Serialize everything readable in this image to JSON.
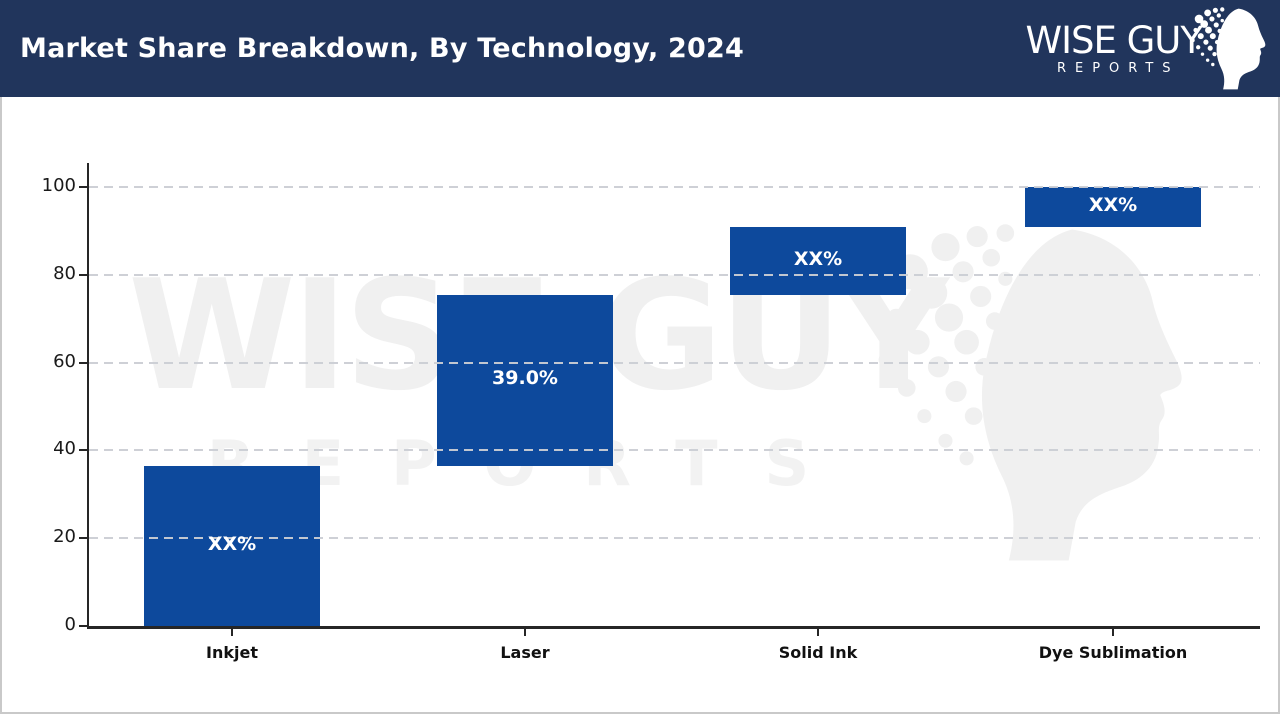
{
  "header": {
    "title": "Market Share Breakdown, By Technology, 2024",
    "bg_color": "#21355c",
    "logo": {
      "name": "WISE GUY",
      "sub": "REPORTS"
    }
  },
  "watermark": {
    "text": "WISE GUY",
    "sub": "REPORTS"
  },
  "chart_data": {
    "type": "bar",
    "subtype": "waterfall",
    "title": "Market Share Breakdown, By Technology, 2024",
    "categories": [
      "Inkjet",
      "Laser",
      "Solid Ink",
      "Dye Sublimation"
    ],
    "segments": [
      {
        "category": "Inkjet",
        "start": 0,
        "end": 36.5,
        "label": "XX%"
      },
      {
        "category": "Laser",
        "start": 36.5,
        "end": 75.5,
        "label": "39.0%"
      },
      {
        "category": "Solid Ink",
        "start": 75.5,
        "end": 91.0,
        "label": "XX%"
      },
      {
        "category": "Dye Sublimation",
        "start": 91.0,
        "end": 100.0,
        "label": "XX%"
      }
    ],
    "y_ticks": [
      0,
      20,
      40,
      60,
      80,
      100
    ],
    "ylim": [
      0,
      105
    ],
    "xlabel": "",
    "ylabel": "",
    "legend": "none",
    "grid": "dashed-horizontal",
    "bar_color": "#0d499c",
    "bar_label_color": "#ffffff",
    "gridline_color": "#cfcfcf",
    "axis_color": "#262626"
  }
}
